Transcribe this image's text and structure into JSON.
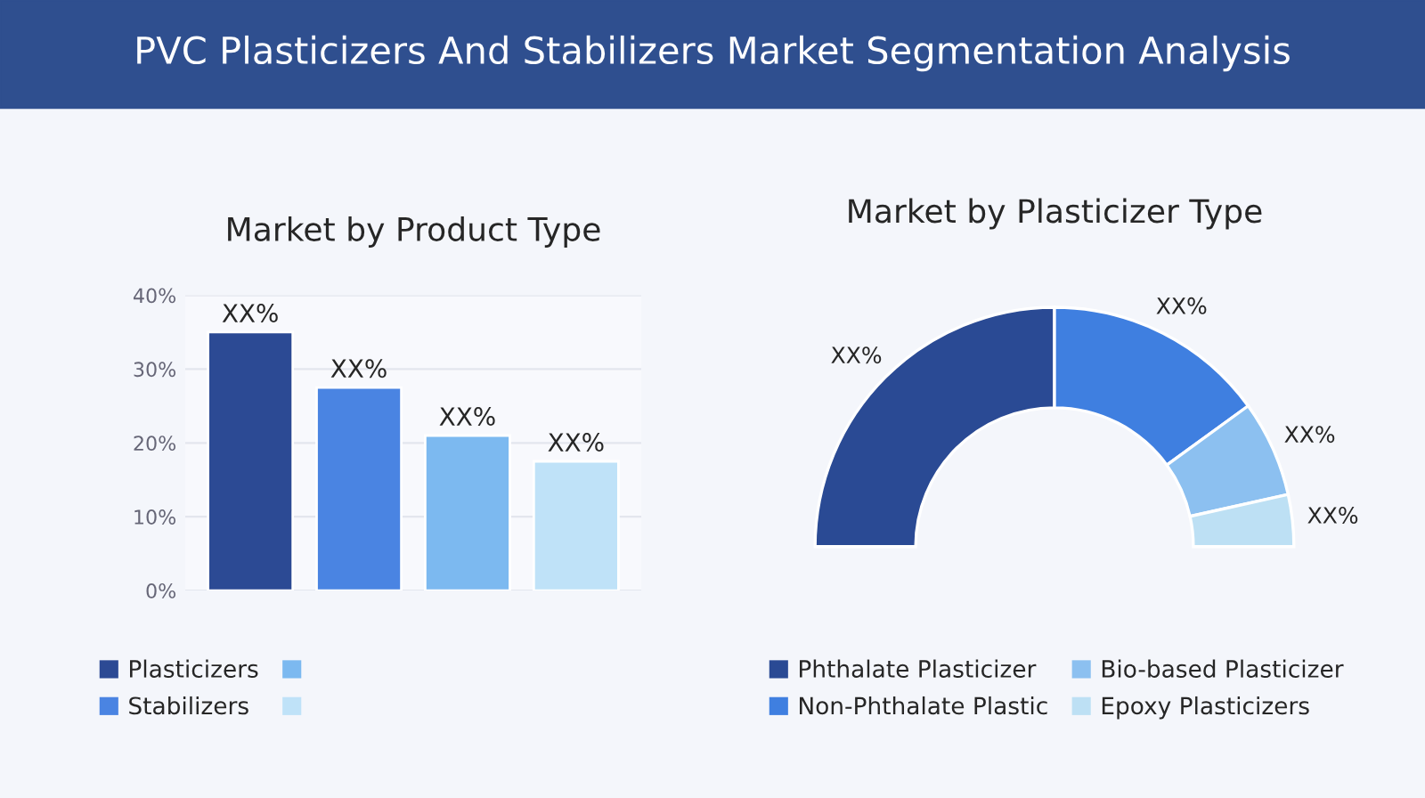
{
  "chart_data": [
    {
      "type": "bar",
      "title": "Market by Product Type",
      "annotations": [
        "PVC Plasticizers And Stabilizers Market Segmentation Analysis"
      ],
      "categories": [
        null,
        null,
        null,
        null
      ],
      "series": [
        {
          "name": "Plasticizers",
          "color": "#2c4a94",
          "values": [
            35,
            null,
            null,
            null
          ],
          "value_labels": [
            "XX%",
            null,
            null,
            null
          ]
        },
        {
          "name": "Stabilizers",
          "color": "#4a84e2",
          "values": [
            null,
            27.5,
            null,
            null
          ],
          "value_labels": [
            null,
            "XX%",
            null,
            null
          ]
        },
        {
          "color": "#7cb9f0",
          "values": [
            null,
            null,
            21,
            null
          ],
          "value_labels": [
            null,
            null,
            "XX%",
            null
          ]
        },
        {
          "color": "#bfe2f8",
          "values": [
            null,
            null,
            null,
            17.5
          ],
          "value_labels": [
            null,
            null,
            null,
            "XX%"
          ]
        }
      ],
      "ylim": [
        0,
        40
      ],
      "yticks": [
        {
          "value": 0,
          "label": "0%"
        },
        {
          "value": 10,
          "label": "10%"
        },
        {
          "value": 20,
          "label": "20%"
        },
        {
          "value": 30,
          "label": "30%"
        },
        {
          "value": 40,
          "label": "40%"
        }
      ],
      "grid": "y",
      "legend": "bottom",
      "tick_labels": "y"
    },
    {
      "type": "donut",
      "title": "Market by Plasticizer Type",
      "categories": [
        "Phthalate Plasticizer",
        "Non-Phthalate Plastic",
        "Bio-based Plasticizer",
        "Epoxy Plasticizers"
      ],
      "values": [
        50,
        30,
        13,
        7
      ],
      "colors": [
        "#2a4a94",
        "#3f7fe0",
        "#8cc0f0",
        "#bde0f4"
      ],
      "value_labels": [
        "XX%",
        "XX%",
        "XX%",
        "XX%"
      ],
      "legend": "bottom"
    }
  ]
}
